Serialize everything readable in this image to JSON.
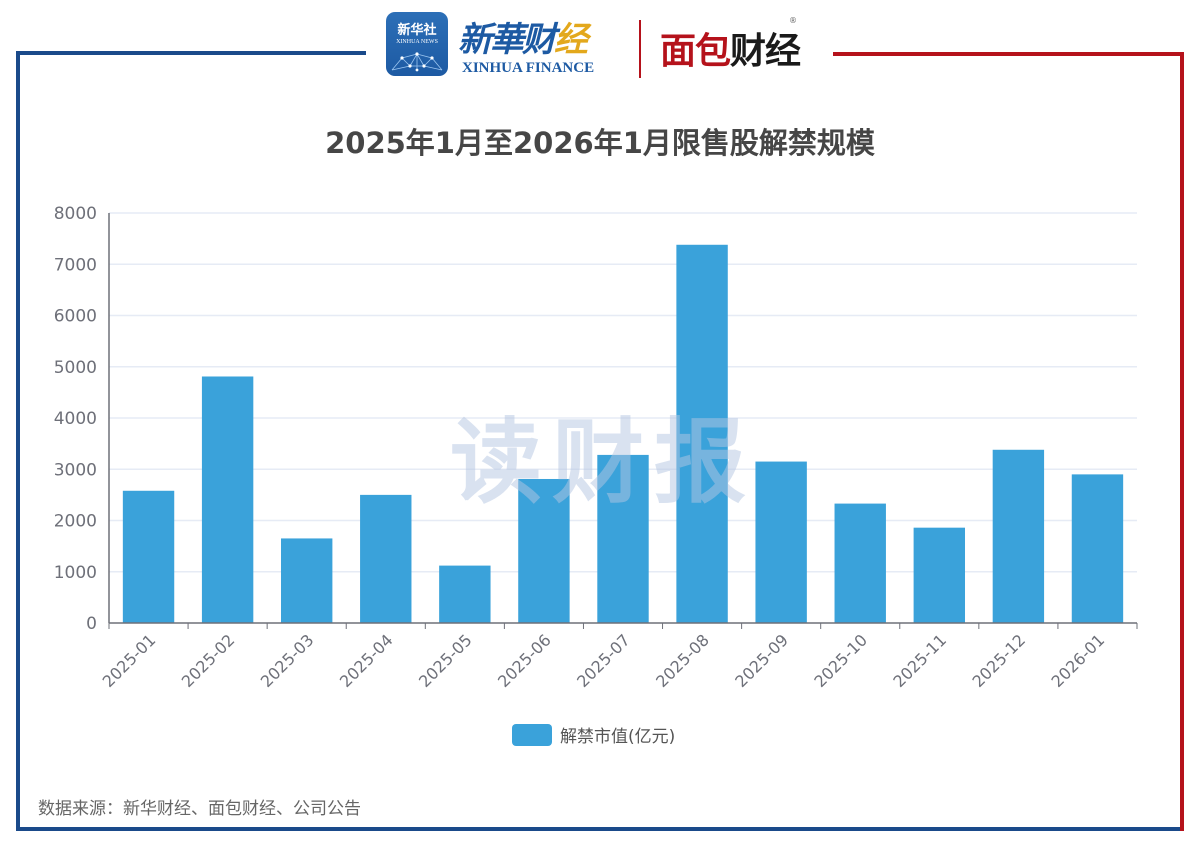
{
  "branding": {
    "xinhua_badge_cn": "新华社",
    "xinhua_badge_en": "XINHUA NEWS",
    "xinhua_finance_cn_a": "新華财",
    "xinhua_finance_cn_b": "经",
    "xinhua_finance_en": "XINHUA FINANCE",
    "mianbao_red": "面包",
    "mianbao_dark": "财经",
    "registered": "®"
  },
  "watermark": "读财报",
  "colors": {
    "bar": "#3aa2da",
    "frame_blue": "#1a4a8a",
    "frame_red": "#b5121b",
    "grid": "#e6ebf5",
    "axis": "#6e7079"
  },
  "chart_data": {
    "type": "bar",
    "title": "2025年1月至2026年1月限售股解禁规模",
    "xlabel": "",
    "ylabel": "",
    "categories": [
      "2025-01",
      "2025-02",
      "2025-03",
      "2025-04",
      "2025-05",
      "2025-06",
      "2025-07",
      "2025-08",
      "2025-09",
      "2025-10",
      "2025-11",
      "2025-12",
      "2026-01"
    ],
    "series": [
      {
        "name": "解禁市值(亿元)",
        "values": [
          2580,
          4810,
          1650,
          2500,
          1120,
          2810,
          3280,
          7380,
          3150,
          2330,
          1860,
          3380,
          2900
        ]
      }
    ],
    "ylim": [
      0,
      8000
    ],
    "yticks": [
      0,
      1000,
      2000,
      3000,
      4000,
      5000,
      6000,
      7000,
      8000
    ],
    "grid": true,
    "legend_position": "bottom",
    "x_tick_rotation": -45
  },
  "legend": {
    "label": "解禁市值(亿元)"
  },
  "source": "数据来源：新华财经、面包财经、公司公告"
}
